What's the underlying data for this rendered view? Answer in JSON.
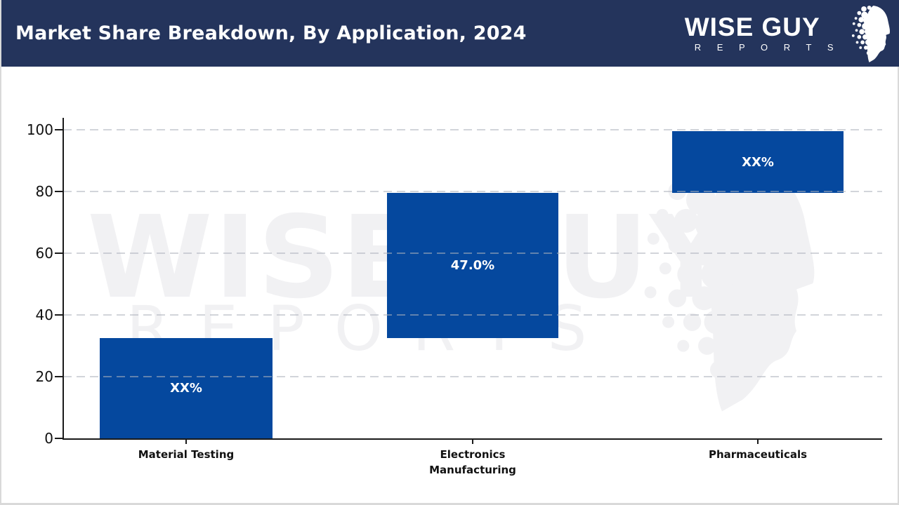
{
  "header": {
    "title": "Market Share Breakdown, By Application, 2024",
    "logo": {
      "line1": "WISE GUY",
      "line2": "R E P O R T S"
    }
  },
  "watermark": {
    "line1": "WISE GUY",
    "line2": "REPORTS"
  },
  "chart_data": {
    "type": "bar",
    "subtype": "waterfall",
    "title": "Market Share Breakdown, By Application, 2024",
    "categories": [
      "Material Testing",
      "Electronics Manufacturing",
      "Pharmaceuticals"
    ],
    "bars": [
      {
        "category": "Material Testing",
        "label": "XX%",
        "start": 0,
        "end": 32.5
      },
      {
        "category": "Electronics Manufacturing",
        "label": "47.0%",
        "start": 32.5,
        "end": 79.5
      },
      {
        "category": "Pharmaceuticals",
        "label": "XX%",
        "start": 79.5,
        "end": 99.5
      }
    ],
    "xlabel": "",
    "ylabel": "",
    "ylim": [
      0,
      100
    ],
    "yticks": [
      0,
      20,
      40,
      60,
      80,
      100
    ],
    "grid": "dashed horizontal gridlines",
    "legend": "none"
  },
  "colors": {
    "page_bg": "#FFFFFF",
    "header_bg": "#24345C",
    "title_text": "#FFFFFF",
    "bar_blue": "#05489E",
    "bar_label_text": "#FFFFFF",
    "axis": "#1A1A1A",
    "tick_text": "#111111",
    "gridline": "#D8DADE",
    "watermark": "#F1F1F3",
    "edge_line": "#D9D9D9"
  }
}
